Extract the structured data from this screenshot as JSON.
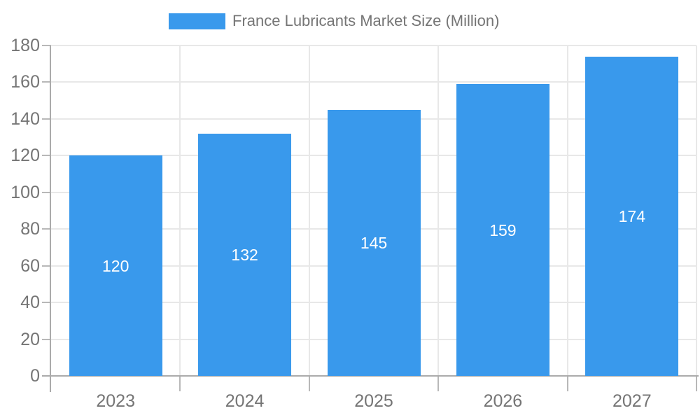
{
  "legend": {
    "label": "France Lubricants Market Size (Million)"
  },
  "colors": {
    "bar": "#3999EC",
    "axis_line": "#ababab",
    "tick_mark": "#b8b8b8",
    "gridline": "#e8e8e8",
    "tick_label": "#757575",
    "legend_text": "#757575",
    "value_label": "#ffffff",
    "background": "#ffffff"
  },
  "chart_data": {
    "type": "bar",
    "title": "France Lubricants Market Size (Million)",
    "series_name": "France Lubricants Market Size (Million)",
    "categories": [
      "2023",
      "2024",
      "2025",
      "2026",
      "2027"
    ],
    "values": [
      120,
      132,
      145,
      159,
      174
    ],
    "xlabel": "",
    "ylabel": "",
    "ylim": [
      0,
      180
    ],
    "ytick_step": 20,
    "ytick_labels": [
      "0",
      "20",
      "40",
      "60",
      "80",
      "100",
      "120",
      "140",
      "160",
      "180"
    ],
    "grid": true,
    "legend_position": "top-center",
    "value_label_position": "inside-middle"
  }
}
